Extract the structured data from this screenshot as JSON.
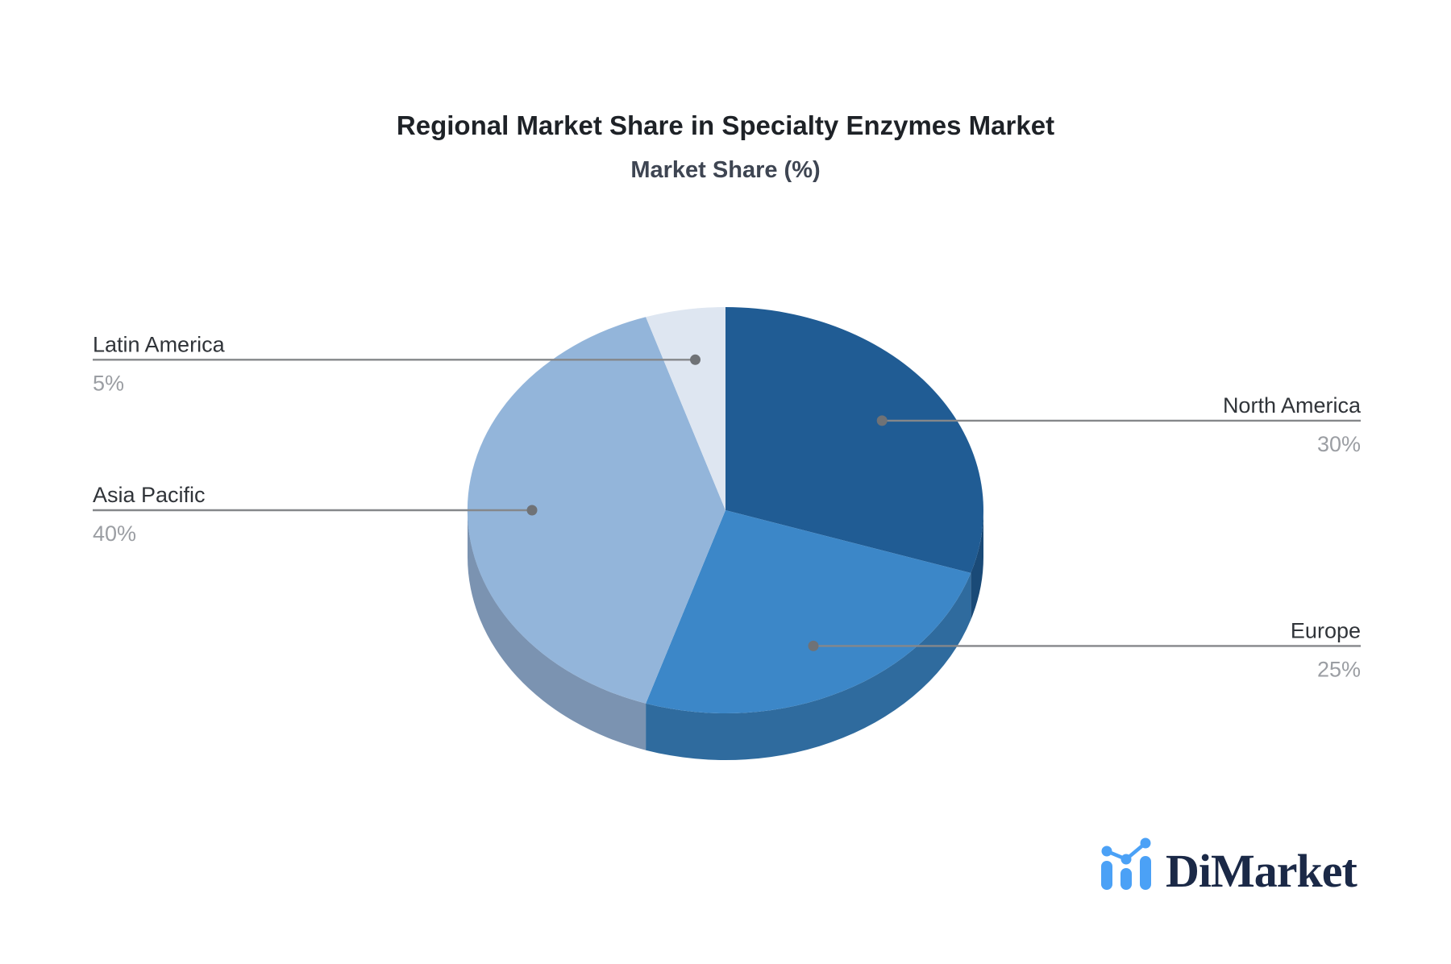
{
  "page": {
    "background": "#FFFFFF"
  },
  "chart_data": {
    "type": "pie",
    "title": "Regional Market Share in Specialty Enzymes Market",
    "subtitle": "Market Share (%)",
    "unit": "%",
    "effect": "3d",
    "start_angle_deg": 0,
    "direction": "clockwise",
    "legend": "none",
    "categories": [
      "North America",
      "Europe",
      "Asia Pacific",
      "Latin America"
    ],
    "values": [
      30,
      25,
      40,
      5
    ],
    "series": [
      {
        "label": "North America",
        "value": 30,
        "value_label": "30%",
        "color": "#205C94",
        "side_color": "#1A4A77",
        "callout_side": "right"
      },
      {
        "label": "Europe",
        "value": 25,
        "value_label": "25%",
        "color": "#3C87C8",
        "side_color": "#2F6B9E",
        "callout_side": "right"
      },
      {
        "label": "Asia Pacific",
        "value": 40,
        "value_label": "40%",
        "color": "#93B5DA",
        "side_color": "#7B93B1",
        "callout_side": "left"
      },
      {
        "label": "Latin America",
        "value": 5,
        "value_label": "5%",
        "color": "#DEE6F1",
        "side_color": "#C2CDDE",
        "callout_side": "left"
      }
    ],
    "label_style": {
      "name_color": "#303439",
      "pct_color": "#9B9EA3",
      "line_color": "#85878A"
    }
  },
  "branding": {
    "logo_text": "DiMarket",
    "logo_icon": "bar-chart-trend-icon",
    "icon_color": "#4BA1F6",
    "text_color": "#1B2947"
  }
}
